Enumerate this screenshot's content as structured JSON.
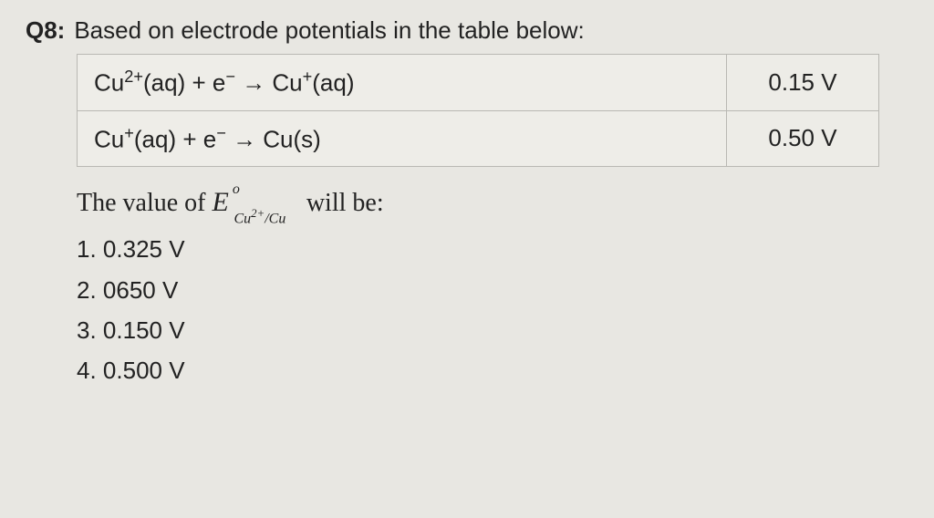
{
  "question": {
    "number": "Q8:",
    "prompt": "Based on electrode potentials in the table below:"
  },
  "table": {
    "rows": [
      {
        "reaction_html": "Cu<span class='sup'>2+</span>(aq) + e<span class='sup'>&minus;</span> &rarr; Cu<span class='sup'>+</span>(aq)",
        "potential": "0.15 V"
      },
      {
        "reaction_html": "Cu<span class='sup'>+</span>(aq) + e<span class='sup'>&minus;</span> &rarr; Cu(s)",
        "potential": "0.50 V"
      }
    ],
    "border_color": "#b9b8b3",
    "background_color": "#eeede8",
    "font_size": 26
  },
  "subquestion": {
    "prefix": "The value of ",
    "symbol_E": "E",
    "symbol_sup": "o",
    "symbol_sub": "Cu<span style='font-size:0.8em;vertical-align:super;'>2+</span>/Cu",
    "suffix": " will be:"
  },
  "options": [
    {
      "n": "1.",
      "text": "0.325 V"
    },
    {
      "n": "2.",
      "text": "0650 V"
    },
    {
      "n": "3.",
      "text": "0.150 V"
    },
    {
      "n": "4.",
      "text": "0.500 V"
    }
  ],
  "styling": {
    "page_bg": "#e8e7e2",
    "text_color": "#222222",
    "qnum_fontsize": 26,
    "qtext_fontsize": 26,
    "option_fontsize": 26,
    "subq_fontsize": 28,
    "subq_font_family": "Georgia"
  }
}
